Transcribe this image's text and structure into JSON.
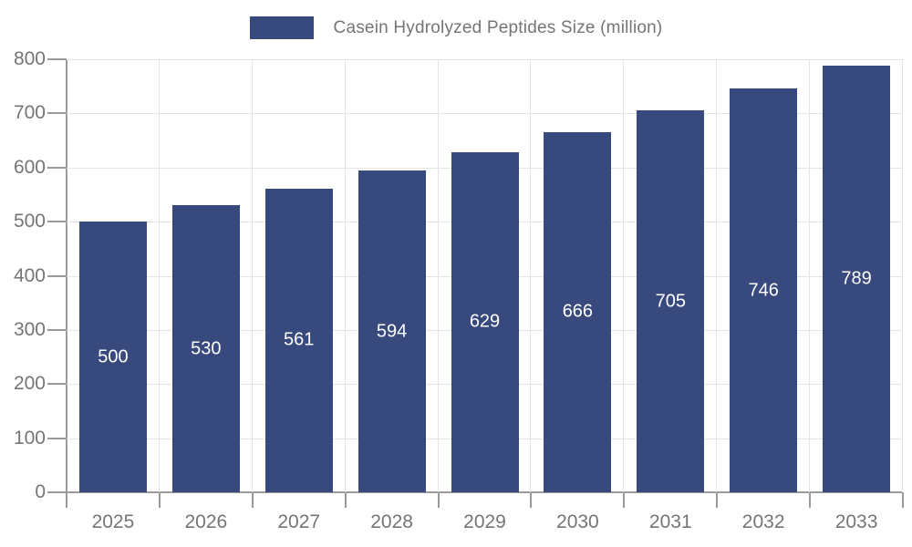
{
  "chart_data": {
    "type": "bar",
    "title": "Casein Hydrolyzed Peptides Size (million)",
    "legend": {
      "label": "Casein Hydrolyzed Peptides Size (million)",
      "position": "top"
    },
    "categories": [
      "2025",
      "2026",
      "2027",
      "2028",
      "2029",
      "2030",
      "2031",
      "2032",
      "2033"
    ],
    "values": [
      500,
      530,
      561,
      594,
      629,
      666,
      705,
      746,
      789
    ],
    "xlabel": "",
    "ylabel": "",
    "ylim": [
      0,
      800
    ],
    "ytick_step": 100,
    "ytick_labels": [
      "0",
      "100",
      "200",
      "300",
      "400",
      "500",
      "600",
      "700",
      "800"
    ],
    "grid": true,
    "colors": {
      "bar": "#38497E",
      "bar_value_label": "#ffffff",
      "axis_text": "#757575",
      "legend_text": "#757575",
      "gridline": "#e4e4e4",
      "axis_line": "#9a9a9a"
    }
  }
}
